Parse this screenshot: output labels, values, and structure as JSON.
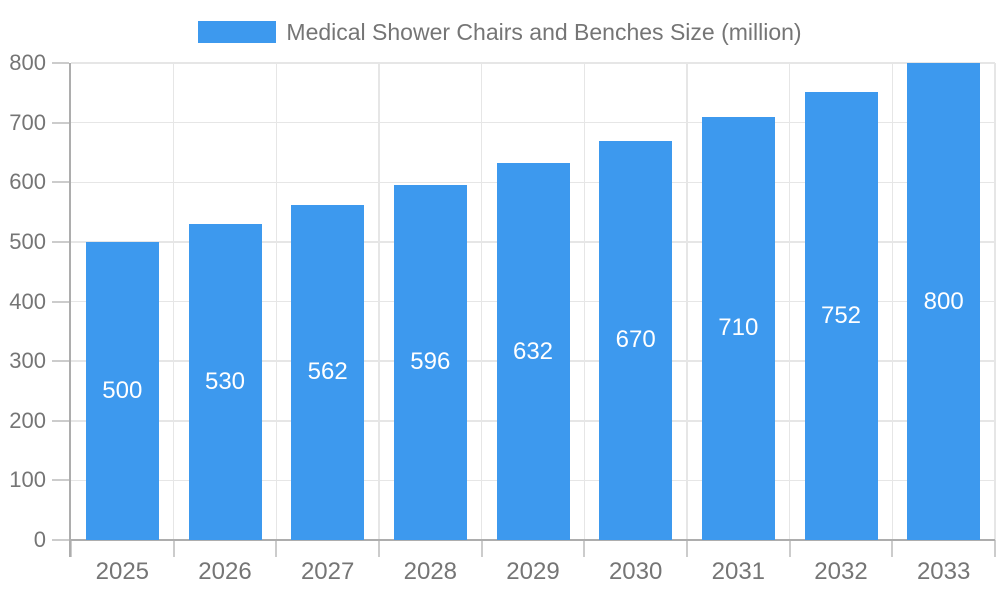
{
  "colors": {
    "bar": "#3D99EE",
    "axis": "#ADADAD",
    "gridline": "#E6E6E6",
    "tick_mark": "#CCCCCC",
    "axis_label": "#757575",
    "bar_value_label": "#FFFFFF",
    "background": "#FFFFFF"
  },
  "legend": {
    "label": "Medical Shower Chairs and Benches Size (million)"
  },
  "chart_data": {
    "type": "bar",
    "title": "Medical Shower Chairs and Benches Size (million)",
    "categories": [
      "2025",
      "2026",
      "2027",
      "2028",
      "2029",
      "2030",
      "2031",
      "2032",
      "2033"
    ],
    "values": [
      500,
      530,
      562,
      596,
      632,
      670,
      710,
      752,
      800
    ],
    "xlabel": "",
    "ylabel": "",
    "ylim": [
      0,
      800
    ],
    "yticks": [
      0,
      100,
      200,
      300,
      400,
      500,
      600,
      700,
      800
    ],
    "grid": true,
    "legend_position": "top",
    "value_label_position": "inside-center"
  }
}
